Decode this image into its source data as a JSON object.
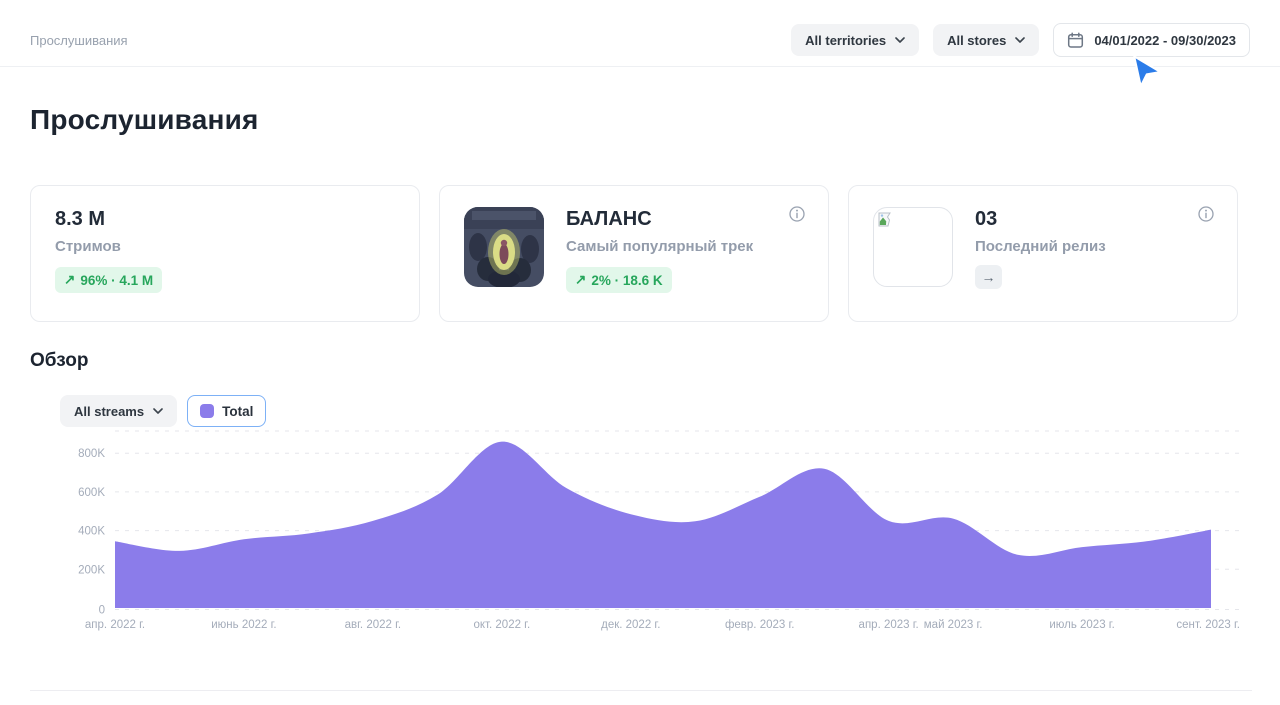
{
  "topbar": {
    "breadcrumb": "Прослушивания",
    "territories_button": "All territories",
    "stores_button": "All stores",
    "date_range": "04/01/2022 - 09/30/2023"
  },
  "page": {
    "title": "Прослушивания",
    "overview_title": "Обзор"
  },
  "cards": [
    {
      "value": "8.3 M",
      "label": "Стримов",
      "badge_arrow": "↗",
      "badge_text": "96% · 4.1 M"
    },
    {
      "value": "БАЛАНС",
      "label": "Самый популярный трек",
      "badge_arrow": "↗",
      "badge_text": "2% · 18.6 K"
    },
    {
      "value": "03",
      "label": "Последний релиз",
      "link_arrow": "→"
    }
  ],
  "overview_controls": {
    "streams_filter": "All streams",
    "legend": {
      "label": "Total",
      "color": "#8b7cea"
    }
  },
  "chart_data": {
    "type": "area",
    "title": "Обзор",
    "x": [
      "апр. 2022",
      "май 2022",
      "июнь 2022",
      "июль 2022",
      "авг. 2022",
      "сент. 2022",
      "окт. 2022",
      "нояб. 2022",
      "дек. 2022",
      "янв. 2023",
      "февр. 2023",
      "март 2023",
      "апр. 2023",
      "май 2023",
      "июнь 2023",
      "июль 2023",
      "авг. 2023",
      "сент. 2023"
    ],
    "series": [
      {
        "name": "Total",
        "color": "#8b7cea",
        "values": [
          345000,
          295000,
          355000,
          385000,
          450000,
          585000,
          860000,
          620000,
          485000,
          448000,
          575000,
          720000,
          450000,
          462000,
          275000,
          315000,
          345000,
          405000
        ]
      }
    ],
    "x_tick_indices": [
      0,
      2,
      4,
      6,
      8,
      10,
      12,
      13,
      15,
      17
    ],
    "x_tick_labels": [
      "апр. 2022 г.",
      "июнь 2022 г.",
      "авг. 2022 г.",
      "окт. 2022 г.",
      "дек. 2022 г.",
      "февр. 2023 г.",
      "апр. 2023 г.",
      "май 2023 г.",
      "июль 2023 г.",
      "сент. 2023 г."
    ],
    "y_ticks": [
      0,
      200000,
      400000,
      600000,
      800000
    ],
    "y_tick_labels": [
      "0",
      "200K",
      "400K",
      "600K",
      "800K"
    ],
    "ylim": [
      0,
      920000
    ],
    "xlabel": "",
    "ylabel": "",
    "grid": "horizontal-dashed",
    "legend_position": "top-left"
  },
  "colors": {
    "accent_purple": "#8b7cea",
    "positive_green": "#27a65c",
    "positive_green_bg": "#e2f7ea",
    "legend_chip_border": "#7db1f6",
    "cursor_blue": "#2b7ce9",
    "axis_text": "#a4acba",
    "grid_line": "#e5e6eb"
  }
}
